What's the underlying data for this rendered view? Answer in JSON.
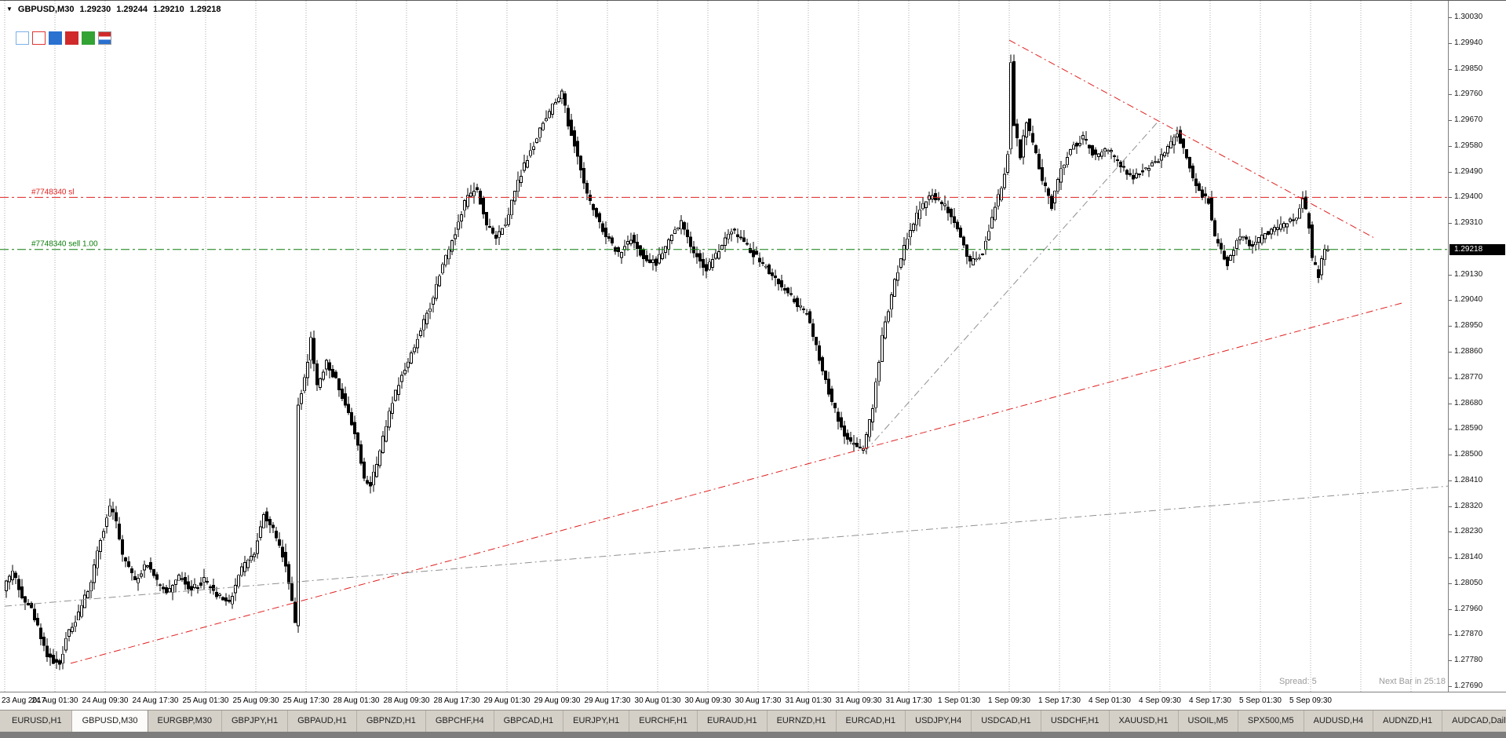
{
  "symbol_header": {
    "arrow": "▼",
    "symbol": "GBPUSD,M30",
    "open": "1.29230",
    "high": "1.29244",
    "low": "1.29210",
    "close": "1.29218"
  },
  "toolbar_swatches": [
    {
      "name": "outline-blue-swatch",
      "fill": "#ffffff",
      "border": "#7ab1e8"
    },
    {
      "name": "outline-red-swatch",
      "fill": "#ffffff",
      "border": "#e03434"
    },
    {
      "name": "blue-swatch",
      "fill": "#2a71d0",
      "border": "#2a71d0"
    },
    {
      "name": "red-swatch",
      "fill": "#d02a2a",
      "border": "#d02a2a"
    },
    {
      "name": "green-swatch",
      "fill": "#33a333",
      "border": "#33a333"
    },
    {
      "name": "red-white-blue-swatch",
      "stripes": [
        "#d02a2a",
        "#ffffff",
        "#2a71d0"
      ],
      "border": "#999999"
    }
  ],
  "status": {
    "spread": "Spread: 5",
    "next_bar": "Next Bar in 25:18"
  },
  "price_axis": {
    "labels": [
      "1.30030",
      "1.29940",
      "1.29850",
      "1.29760",
      "1.29670",
      "1.29580",
      "1.29490",
      "1.29400",
      "1.29310",
      "1.29130",
      "1.29040",
      "1.28950",
      "1.28860",
      "1.28770",
      "1.28680",
      "1.28590",
      "1.28500",
      "1.28410",
      "1.28320",
      "1.28230",
      "1.28140",
      "1.28050",
      "1.27960",
      "1.27870",
      "1.27780",
      "1.27690"
    ],
    "current_price_badge": {
      "value": "1.29218",
      "price": 1.29218,
      "bg": "#000000",
      "fg": "#ffffff"
    }
  },
  "tabs": [
    {
      "label": "EURUSD,H1",
      "active": false
    },
    {
      "label": "GBPUSD,M30",
      "active": true
    },
    {
      "label": "EURGBP,M30",
      "active": false
    },
    {
      "label": "GBPJPY,H1",
      "active": false
    },
    {
      "label": "GBPAUD,H1",
      "active": false
    },
    {
      "label": "GBPNZD,H1",
      "active": false
    },
    {
      "label": "GBPCHF,H4",
      "active": false
    },
    {
      "label": "GBPCAD,H1",
      "active": false
    },
    {
      "label": "EURJPY,H1",
      "active": false
    },
    {
      "label": "EURCHF,H1",
      "active": false
    },
    {
      "label": "EURAUD,H1",
      "active": false
    },
    {
      "label": "EURNZD,H1",
      "active": false
    },
    {
      "label": "EURCAD,H1",
      "active": false
    },
    {
      "label": "USDJPY,H4",
      "active": false
    },
    {
      "label": "USDCAD,H1",
      "active": false
    },
    {
      "label": "USDCHF,H1",
      "active": false
    },
    {
      "label": "XAUUSD,H1",
      "active": false
    },
    {
      "label": "USOIL,M5",
      "active": false
    },
    {
      "label": "SPX500,M5",
      "active": false
    },
    {
      "label": "AUDUSD,H4",
      "active": false
    },
    {
      "label": "AUDNZD,H1",
      "active": false
    },
    {
      "label": "AUDCAD,Daily",
      "active": false
    }
  ],
  "chart_data": {
    "type": "candlestick",
    "symbol": "GBPUSD",
    "timeframe": "M30",
    "ylim": [
      1.2769,
      1.3003
    ],
    "y_tick_step": 0.0009,
    "grid": {
      "vertical": "dotted",
      "horizontal": "none"
    },
    "x_axis_labels": [
      "23 Aug 2017",
      "24 Aug 01:30",
      "24 Aug 09:30",
      "24 Aug 17:30",
      "25 Aug 01:30",
      "25 Aug 09:30",
      "25 Aug 17:30",
      "28 Aug 01:30",
      "28 Aug 09:30",
      "28 Aug 17:30",
      "29 Aug 01:30",
      "29 Aug 09:30",
      "29 Aug 17:30",
      "30 Aug 01:30",
      "30 Aug 09:30",
      "30 Aug 17:30",
      "31 Aug 01:30",
      "31 Aug 09:30",
      "31 Aug 17:30",
      "1 Sep 01:30",
      "1 Sep 09:30",
      "1 Sep 17:30",
      "4 Sep 01:30",
      "4 Sep 09:30",
      "4 Sep 17:30",
      "5 Sep 01:30",
      "5 Sep 09:30"
    ],
    "bars_per_label": 16,
    "total_bars": 422,
    "current_price": 1.29218,
    "candle_colors": {
      "bull_fill": "#ffffff",
      "bear_fill": "#000000",
      "outline": "#000000"
    },
    "price_path_anchors": [
      [
        0,
        1.2803
      ],
      [
        3,
        1.2809
      ],
      [
        6,
        1.28
      ],
      [
        9,
        1.2796
      ],
      [
        12,
        1.2786
      ],
      [
        14,
        1.278
      ],
      [
        16,
        1.2778
      ],
      [
        18,
        1.2776
      ],
      [
        20,
        1.2786
      ],
      [
        24,
        1.2794
      ],
      [
        28,
        1.2806
      ],
      [
        31,
        1.282
      ],
      [
        34,
        1.2832
      ],
      [
        36,
        1.2826
      ],
      [
        38,
        1.2815
      ],
      [
        42,
        1.2806
      ],
      [
        46,
        1.2812
      ],
      [
        48,
        1.2807
      ],
      [
        52,
        1.2801
      ],
      [
        56,
        1.2807
      ],
      [
        60,
        1.2803
      ],
      [
        64,
        1.2806
      ],
      [
        68,
        1.2801
      ],
      [
        72,
        1.2798
      ],
      [
        76,
        1.281
      ],
      [
        80,
        1.2816
      ],
      [
        83,
        1.2829
      ],
      [
        86,
        1.2824
      ],
      [
        90,
        1.2812
      ],
      [
        92,
        1.2798
      ],
      [
        93,
        1.2791
      ],
      [
        94,
        1.2868
      ],
      [
        96,
        1.2876
      ],
      [
        98,
        1.289
      ],
      [
        100,
        1.2874
      ],
      [
        103,
        1.2882
      ],
      [
        106,
        1.2876
      ],
      [
        109,
        1.2868
      ],
      [
        112,
        1.2858
      ],
      [
        115,
        1.2841
      ],
      [
        117,
        1.2839
      ],
      [
        120,
        1.2851
      ],
      [
        124,
        1.2869
      ],
      [
        128,
        1.288
      ],
      [
        132,
        1.2891
      ],
      [
        136,
        1.2902
      ],
      [
        140,
        1.2916
      ],
      [
        144,
        1.2928
      ],
      [
        148,
        1.2941
      ],
      [
        151,
        1.2943
      ],
      [
        154,
        1.293
      ],
      [
        157,
        1.2926
      ],
      [
        160,
        1.2931
      ],
      [
        164,
        1.2946
      ],
      [
        168,
        1.2956
      ],
      [
        172,
        1.2966
      ],
      [
        176,
        1.2974
      ],
      [
        178,
        1.2977
      ],
      [
        180,
        1.2966
      ],
      [
        183,
        1.2955
      ],
      [
        186,
        1.2941
      ],
      [
        190,
        1.2931
      ],
      [
        192,
        1.2927
      ],
      [
        196,
        1.292
      ],
      [
        200,
        1.2926
      ],
      [
        204,
        1.2919
      ],
      [
        208,
        1.2917
      ],
      [
        212,
        1.2925
      ],
      [
        216,
        1.2931
      ],
      [
        220,
        1.2921
      ],
      [
        224,
        1.2915
      ],
      [
        228,
        1.2921
      ],
      [
        232,
        1.2929
      ],
      [
        236,
        1.2924
      ],
      [
        240,
        1.2919
      ],
      [
        244,
        1.2914
      ],
      [
        248,
        1.2909
      ],
      [
        252,
        1.2904
      ],
      [
        256,
        1.2899
      ],
      [
        260,
        1.2884
      ],
      [
        264,
        1.2868
      ],
      [
        268,
        1.2857
      ],
      [
        271,
        1.2853
      ],
      [
        274,
        1.2852
      ],
      [
        277,
        1.2867
      ],
      [
        280,
        1.2891
      ],
      [
        284,
        1.2911
      ],
      [
        288,
        1.2926
      ],
      [
        292,
        1.2936
      ],
      [
        296,
        1.2941
      ],
      [
        300,
        1.2937
      ],
      [
        304,
        1.2929
      ],
      [
        308,
        1.2917
      ],
      [
        312,
        1.2921
      ],
      [
        316,
        1.2936
      ],
      [
        319,
        1.2948
      ],
      [
        320,
        1.2956
      ],
      [
        321,
        1.2988
      ],
      [
        322,
        1.2966
      ],
      [
        324,
        1.2954
      ],
      [
        326,
        1.2967
      ],
      [
        328,
        1.2959
      ],
      [
        331,
        1.2946
      ],
      [
        334,
        1.2937
      ],
      [
        337,
        1.295
      ],
      [
        340,
        1.2957
      ],
      [
        344,
        1.2961
      ],
      [
        348,
        1.2954
      ],
      [
        352,
        1.2957
      ],
      [
        356,
        1.2951
      ],
      [
        360,
        1.2947
      ],
      [
        364,
        1.295
      ],
      [
        368,
        1.2953
      ],
      [
        372,
        1.2959
      ],
      [
        374,
        1.2963
      ],
      [
        378,
        1.295
      ],
      [
        381,
        1.2942
      ],
      [
        384,
        1.2939
      ],
      [
        386,
        1.2926
      ],
      [
        390,
        1.2917
      ],
      [
        394,
        1.2927
      ],
      [
        397,
        1.2923
      ],
      [
        400,
        1.2925
      ],
      [
        404,
        1.2929
      ],
      [
        408,
        1.293
      ],
      [
        412,
        1.2933
      ],
      [
        414,
        1.294
      ],
      [
        416,
        1.293
      ],
      [
        417,
        1.2918
      ],
      [
        419,
        1.2913
      ],
      [
        420,
        1.2919
      ],
      [
        421,
        1.2922
      ]
    ],
    "noise": {
      "body": 0.00022,
      "wick": 0.0003,
      "seed": 9
    },
    "order_lines": [
      {
        "label": "#7748340 sl",
        "price": 1.294,
        "color": "#e02020",
        "style": "dash-dot"
      },
      {
        "label": "#7748340 sell 1.00",
        "price": 1.29218,
        "color": "#0b7d0b",
        "style": "dash-dot"
      }
    ],
    "trendlines": [
      {
        "name": "ascending-support-red",
        "color": "#e02020",
        "from": [
          21,
          1.2777
        ],
        "to": [
          445,
          1.2903
        ]
      },
      {
        "name": "descending-resistance-red",
        "color": "#e02020",
        "from": [
          320,
          1.2995
        ],
        "to": [
          436,
          1.2926
        ]
      },
      {
        "name": "long-ascending-gray",
        "color": "#909090",
        "from": [
          0,
          1.2797
        ],
        "to": [
          460,
          1.2839
        ]
      },
      {
        "name": "steep-ascending-gray",
        "color": "#909090",
        "from": [
          274,
          1.2851
        ],
        "to": [
          367,
          1.2966
        ]
      }
    ]
  }
}
